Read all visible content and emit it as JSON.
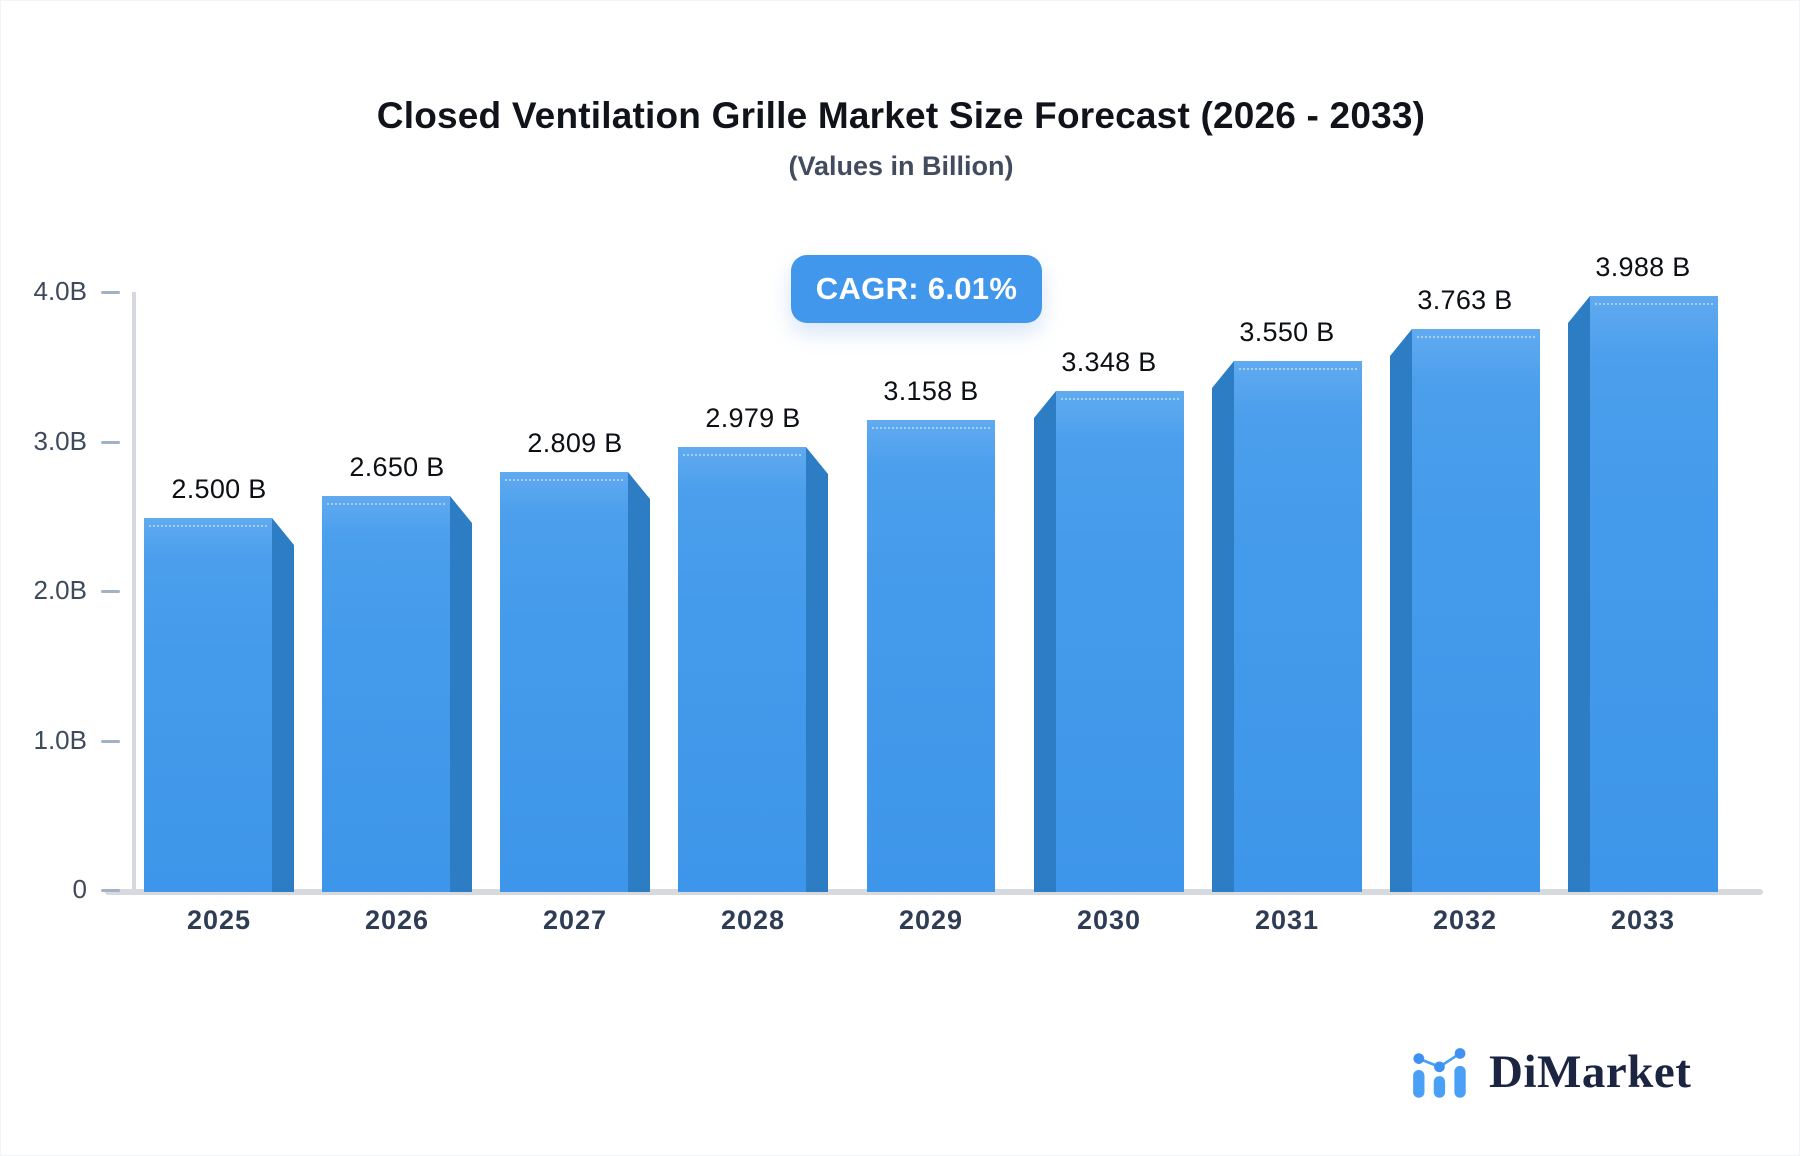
{
  "title": "Closed Ventilation Grille Market Size Forecast (2026 - 2033)",
  "subtitle": "(Values in Billion)",
  "cagr_badge": "CAGR: 6.01%",
  "watermark": {
    "brand": "DiMarket"
  },
  "colors": {
    "badge_bg": "#4197ec",
    "bar_top": "#61aaf0",
    "bar_bottom": "#3e96ea",
    "bar_side": "#2d7dc4",
    "axis_line": "#d5d8de",
    "tick": "#a3b2c2",
    "logo_icon": "#4aa0f6",
    "logo_text": "#1b2440"
  },
  "chart_data": {
    "type": "bar",
    "title": "Closed Ventilation Grille Market Size Forecast (2026 - 2033)",
    "subtitle": "(Values in Billion)",
    "annotation": "CAGR: 6.01%",
    "categories": [
      "2025",
      "2026",
      "2027",
      "2028",
      "2029",
      "2030",
      "2031",
      "2032",
      "2033"
    ],
    "values": [
      2.5,
      2.65,
      2.809,
      2.979,
      3.158,
      3.348,
      3.55,
      3.763,
      3.988
    ],
    "data_labels": [
      "2.500 B",
      "2.650 B",
      "2.809 B",
      "2.979 B",
      "3.158 B",
      "3.348 B",
      "3.550 B",
      "3.763 B",
      "3.988 B"
    ],
    "unit": "Billion",
    "ylim": [
      0,
      4
    ],
    "y_ticks": [
      {
        "label": "4.0B",
        "value": 4
      },
      {
        "label": "3.0B",
        "value": 3
      },
      {
        "label": "2.0B",
        "value": 2
      },
      {
        "label": "1.0B",
        "value": 1
      },
      {
        "label": "0",
        "value": 0
      }
    ],
    "grid": false,
    "legend": false
  }
}
